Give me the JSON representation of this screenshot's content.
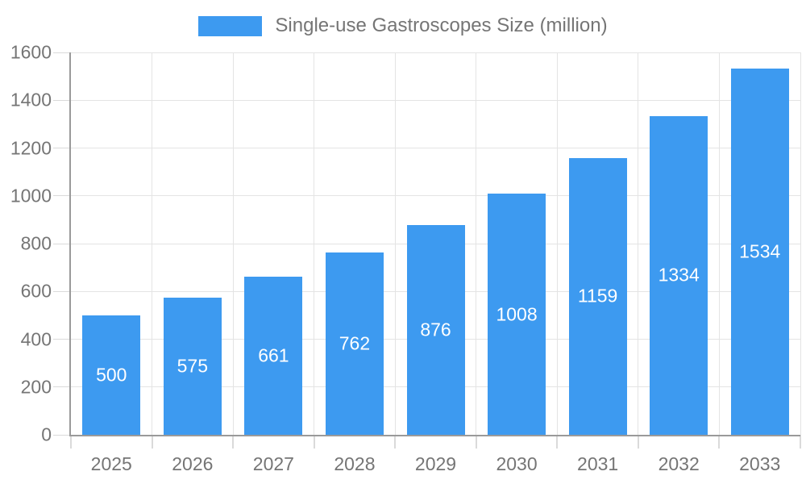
{
  "chart_data": {
    "type": "bar",
    "title": "",
    "series_name": "Single-use Gastroscopes Size (million)",
    "categories": [
      "2025",
      "2026",
      "2027",
      "2028",
      "2029",
      "2030",
      "2031",
      "2032",
      "2033"
    ],
    "values": [
      500,
      575,
      661,
      762,
      876,
      1008,
      1159,
      1334,
      1534
    ],
    "value_labels": [
      "500",
      "575",
      "661",
      "762",
      "876",
      "1008",
      "1159",
      "1334",
      "1534"
    ],
    "y_tick_labels": [
      "0",
      "200",
      "400",
      "600",
      "800",
      "1000",
      "1200",
      "1400",
      "1600"
    ],
    "ylim": [
      0,
      1600
    ],
    "ytick_step": 200,
    "xlabel": "",
    "ylabel": "",
    "grid": "on",
    "legend_position": "top-center",
    "value_labels_position": "inside-center",
    "colors": {
      "bar": "#3D9AF0",
      "value_label": "#ffffff",
      "axis_text": "#757575",
      "axis_line": "#9a9a9a",
      "gridline": "#e4e4e4",
      "tick": "#dadada",
      "background": "#ffffff"
    }
  }
}
